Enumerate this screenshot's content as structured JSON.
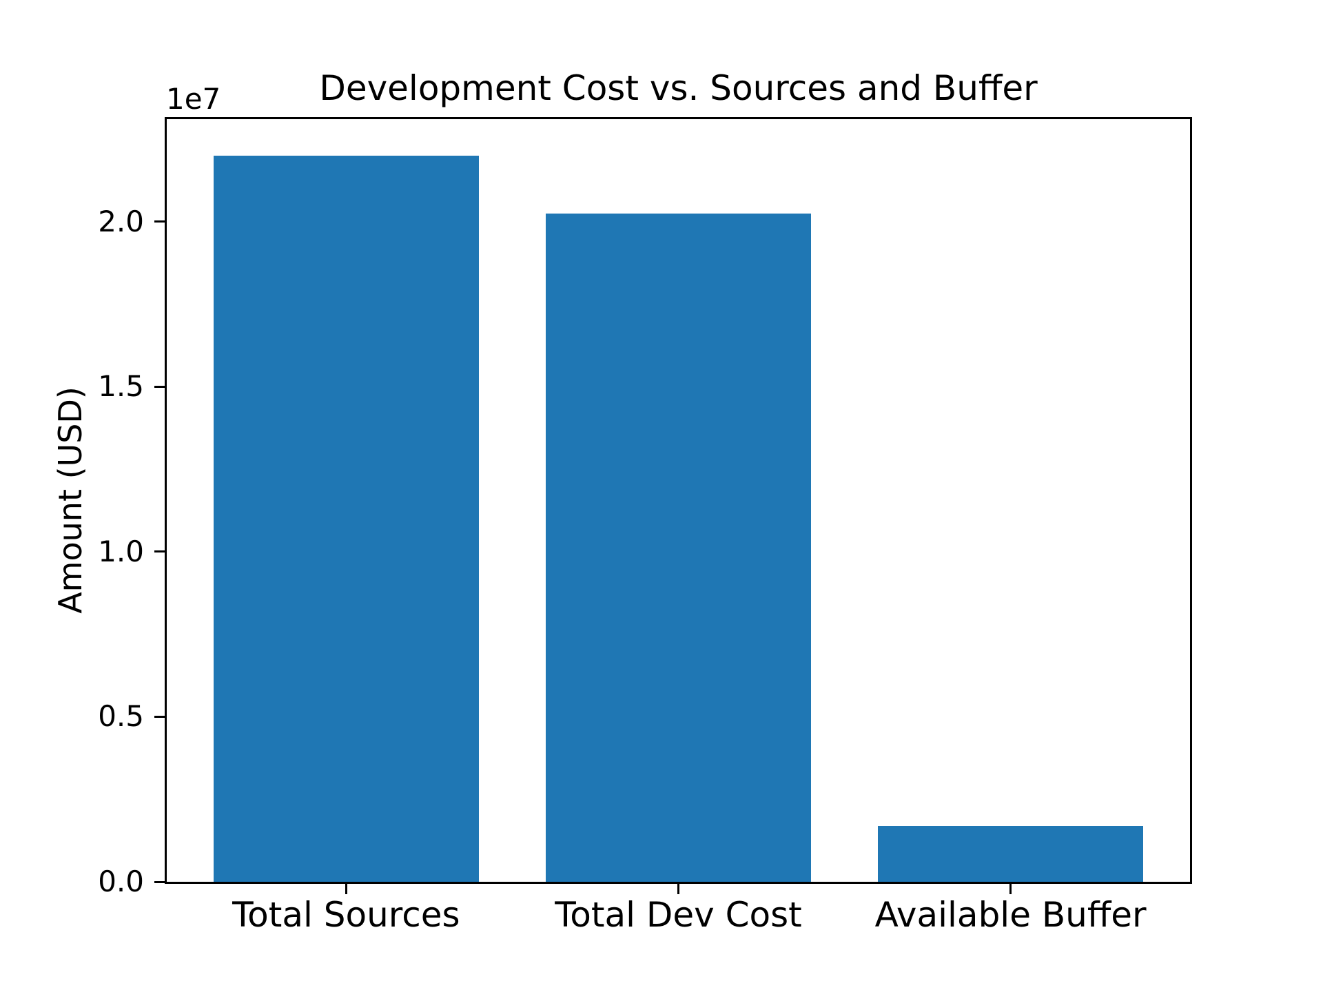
{
  "chart_data": {
    "type": "bar",
    "title": "Development Cost vs. Sources and Buffer",
    "xlabel": "",
    "ylabel": "Amount (USD)",
    "offset_text": "1e7",
    "categories": [
      "Total Sources",
      "Total Dev Cost",
      "Available Buffer"
    ],
    "values": [
      22000000,
      20250000,
      1700000
    ],
    "bar_color": "#1f77b4",
    "ylim": [
      0,
      23100000
    ],
    "yticks": [
      0,
      5000000,
      10000000,
      15000000,
      20000000
    ],
    "ytick_labels": [
      "0.0",
      "0.5",
      "1.0",
      "1.5",
      "2.0"
    ],
    "grid": false,
    "legend": null,
    "background_color": "#ffffff",
    "text_color": "#000000"
  }
}
